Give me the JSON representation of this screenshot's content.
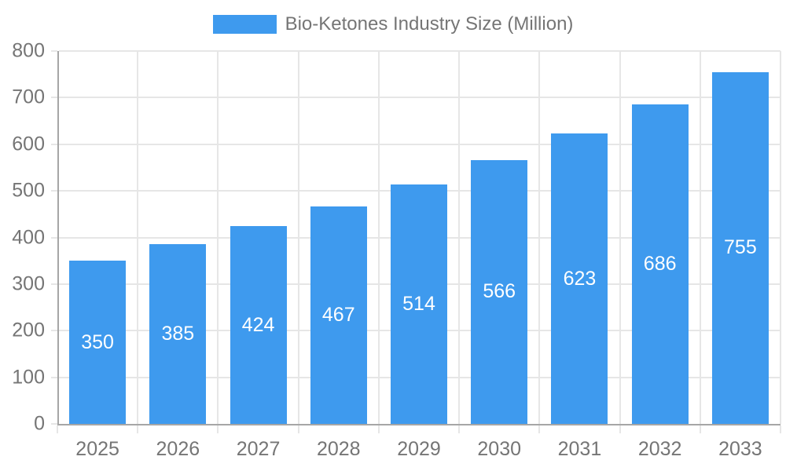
{
  "legend": {
    "label": "Bio-Ketones Industry Size (Million)",
    "position": "top-center"
  },
  "chart_data": {
    "type": "bar",
    "title": "Bio-Ketones Industry Size (Million)",
    "categories": [
      "2025",
      "2026",
      "2027",
      "2028",
      "2029",
      "2030",
      "2031",
      "2032",
      "2033"
    ],
    "values": [
      350,
      385,
      424,
      467,
      514,
      566,
      623,
      686,
      755
    ],
    "xlabel": "",
    "ylabel": "",
    "ylim": [
      0,
      800
    ],
    "yticks": [
      0,
      100,
      200,
      300,
      400,
      500,
      600,
      700,
      800
    ],
    "grid": true,
    "legend_position": "top",
    "bar_labels_inside": true
  },
  "colors": {
    "bar": "#3E9AEE",
    "bar_label_text": "#FFFFFF",
    "grid_line": "#E6E6E6",
    "axis_line": "#A6A6A6",
    "tick_text": "#757575",
    "legend_text": "#757575",
    "background": "#FFFFFF"
  }
}
